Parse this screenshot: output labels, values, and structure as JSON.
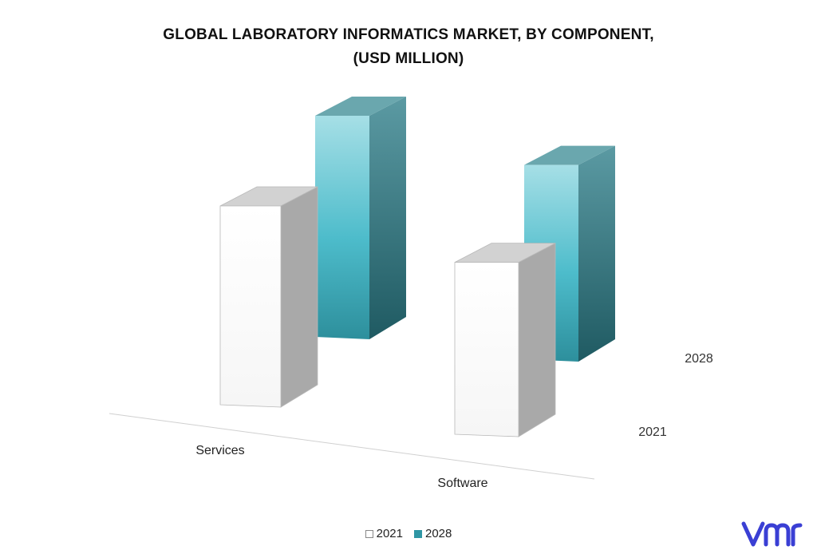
{
  "chart_data": {
    "type": "bar",
    "title": "GLOBAL LABORATORY INFORMATICS MARKET, BY COMPONENT,",
    "subtitle": "(USD MILLION)",
    "categories": [
      "Services",
      "Software"
    ],
    "series": [
      {
        "name": "2021",
        "values": [
          45,
          39
        ],
        "color": "#ffffff"
      },
      {
        "name": "2028",
        "values": [
          50,
          44
        ],
        "color": "#3fb4c4"
      }
    ],
    "depth_labels": [
      "2028",
      "2021"
    ],
    "ylim": [
      0,
      60
    ],
    "grid": false,
    "legend_position": "bottom",
    "three_d": true
  },
  "logo": {
    "icon": "vmr-logo-icon",
    "color": "#3a3fd4"
  }
}
